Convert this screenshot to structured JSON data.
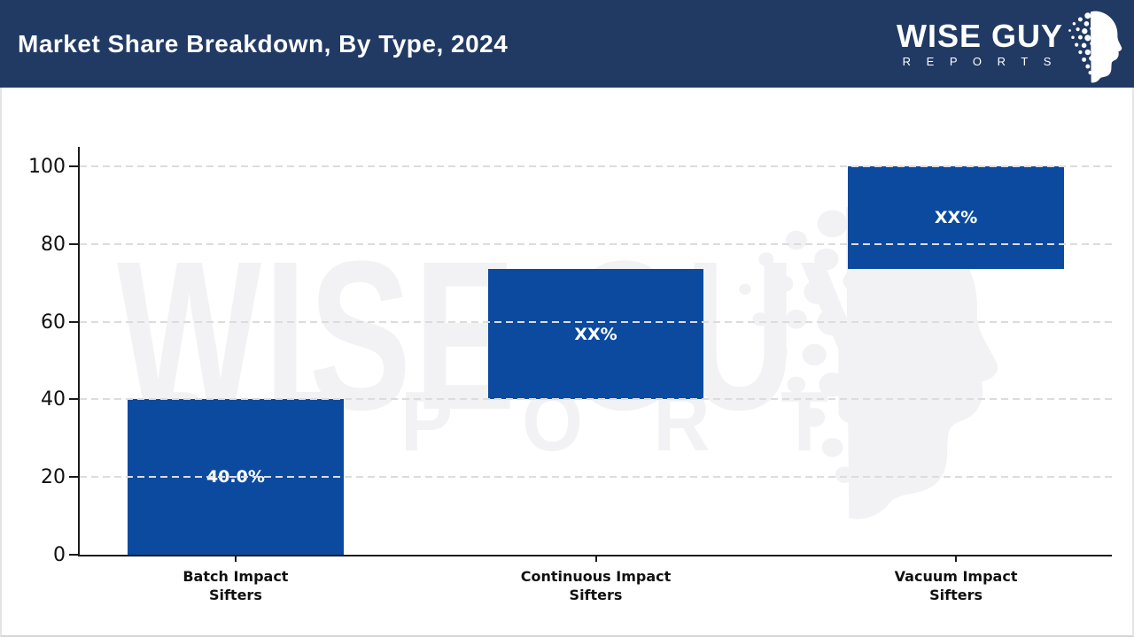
{
  "header": {
    "title": "Market Share Breakdown, By Type, 2024",
    "logo": {
      "name": "WISE GUY",
      "sub": "R E P O R T S"
    }
  },
  "watermark": {
    "line1": "WISE GUY",
    "line2": "R E P O R T S"
  },
  "chart_data": {
    "type": "bar",
    "subtype": "waterfall",
    "title": "Market Share Breakdown, By Type, 2024",
    "categories": [
      "Batch Impact\nSifters",
      "Continuous Impact\nSifters",
      "Vacuum Impact\nSifters"
    ],
    "bars": [
      {
        "category": "Batch Impact Sifters",
        "start": 0,
        "end": 40,
        "label": "40.0%"
      },
      {
        "category": "Continuous Impact Sifters",
        "start": 40,
        "end": 73.5,
        "label": "XX%"
      },
      {
        "category": "Vacuum Impact Sifters",
        "start": 73.5,
        "end": 100,
        "label": "XX%"
      }
    ],
    "yticks": [
      0,
      20,
      40,
      60,
      80,
      100
    ],
    "ylim": [
      0,
      105
    ],
    "grid": "horizontal-dashed",
    "legend": "none",
    "bar_color": "#0b4a9f",
    "bar_label_color": "#ffffff",
    "axis_color": "#1a1a1a",
    "gridline_color": "#dcdcdc"
  }
}
